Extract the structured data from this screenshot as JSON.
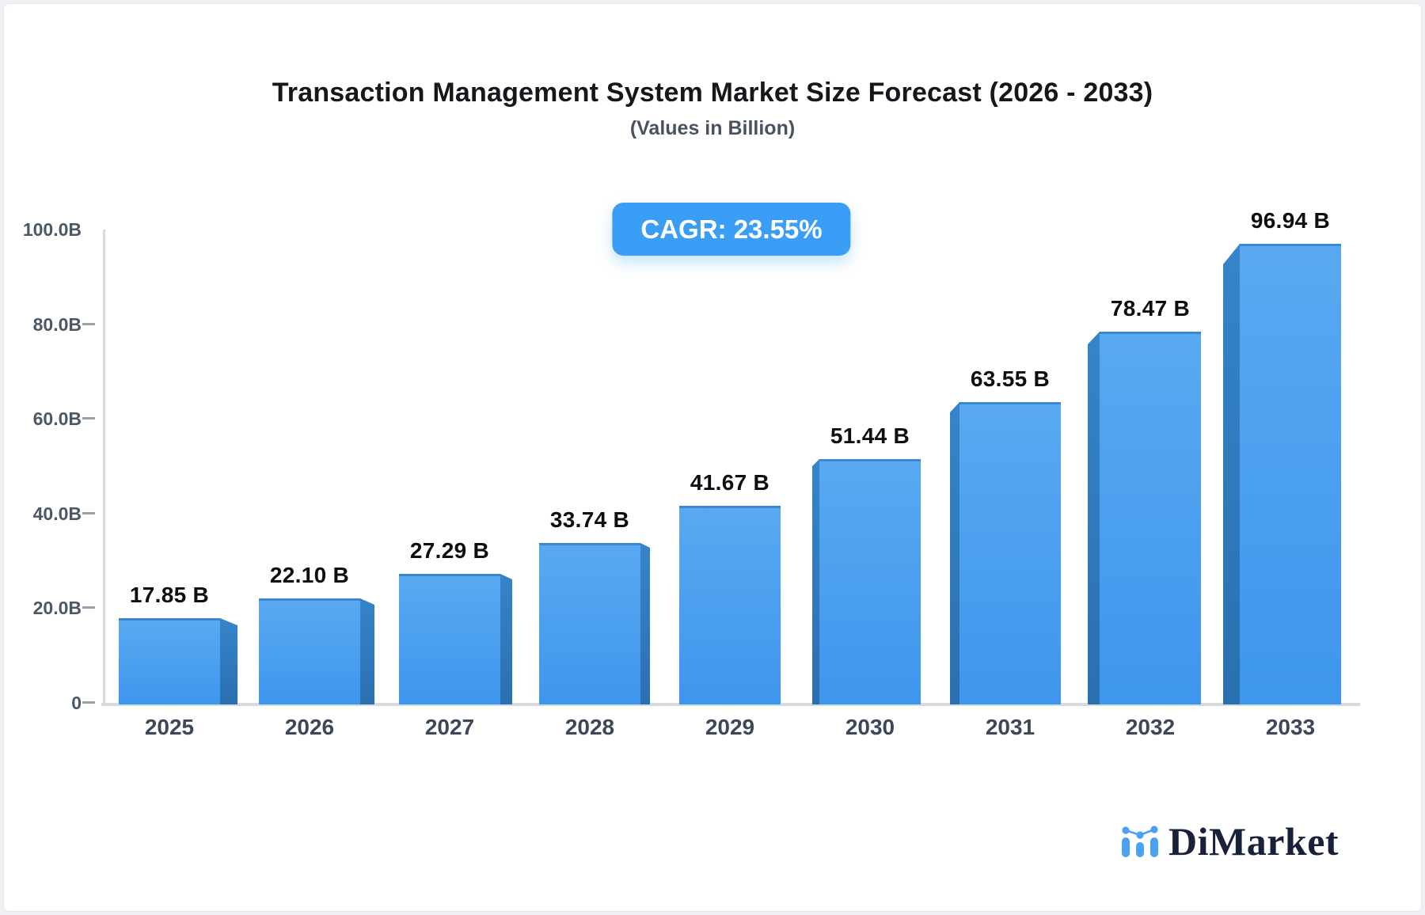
{
  "title": "Transaction Management System Market Size Forecast (2026 - 2033)",
  "subtitle": "(Values in Billion)",
  "cagr_badge": "CAGR: 23.55%",
  "logo": {
    "text": "DiMarket"
  },
  "chart_data": {
    "type": "bar",
    "title": "Transaction Management System Market Size Forecast (2026 - 2033)",
    "subtitle": "(Values in Billion)",
    "cagr_percent": 23.55,
    "categories": [
      "2025",
      "2026",
      "2027",
      "2028",
      "2029",
      "2030",
      "2031",
      "2032",
      "2033"
    ],
    "values": [
      17.85,
      22.1,
      27.29,
      33.74,
      41.67,
      51.44,
      63.55,
      78.47,
      96.94
    ],
    "bar_labels": [
      "17.85 B",
      "22.10 B",
      "27.29 B",
      "33.74 B",
      "41.67 B",
      "51.44 B",
      "63.55 B",
      "78.47 B",
      "96.94 B"
    ],
    "unit": "Billion",
    "ylim": [
      0,
      100
    ],
    "grid": false,
    "y_axis": {
      "ticks": [
        100,
        80,
        60,
        40,
        20,
        0
      ],
      "labels": [
        "100.0B",
        "80.0B",
        "60.0B",
        "40.0B",
        "20.0B",
        "0"
      ]
    },
    "colors": {
      "bar_face_top": "#58a9f1",
      "bar_face_bottom": "#3e96ed",
      "bar_top_edge": "#3d86d0",
      "bar_side_top": "#3684ca",
      "bar_side_bottom": "#2a70b0",
      "badge_bg": "#3b9ef6",
      "axis": "#d7dade",
      "tick": "#99a1ac",
      "logo_blue": "#4aa2f6"
    }
  }
}
